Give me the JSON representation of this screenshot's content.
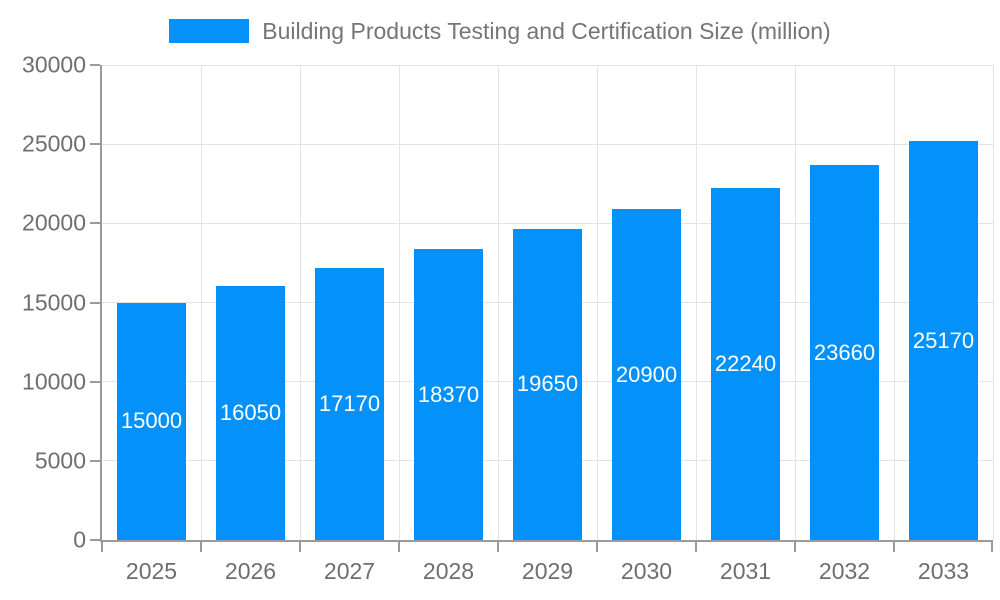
{
  "legend": {
    "label": "Building Products Testing and Certification Size (million)"
  },
  "colors": {
    "bar": "#0591fa",
    "grid": "#e3e3e3",
    "axis": "#9a9a9a",
    "tick_text": "#6e6e6e",
    "legend_text": "#757575",
    "value_label": "#ffffff"
  },
  "chart_data": {
    "type": "bar",
    "title": "Building Products Testing and Certification Size (million)",
    "categories": [
      "2025",
      "2026",
      "2027",
      "2028",
      "2029",
      "2030",
      "2031",
      "2032",
      "2033"
    ],
    "values": [
      15000,
      16050,
      17170,
      18370,
      19650,
      20900,
      22240,
      23660,
      25170
    ],
    "xlabel": "",
    "ylabel": "",
    "ylim": [
      0,
      30000
    ],
    "yticks": [
      0,
      5000,
      10000,
      15000,
      20000,
      25000,
      30000
    ],
    "grid": true,
    "legend_position": "top",
    "bar_width_fraction": 0.7,
    "value_label_position": "inside-center"
  }
}
